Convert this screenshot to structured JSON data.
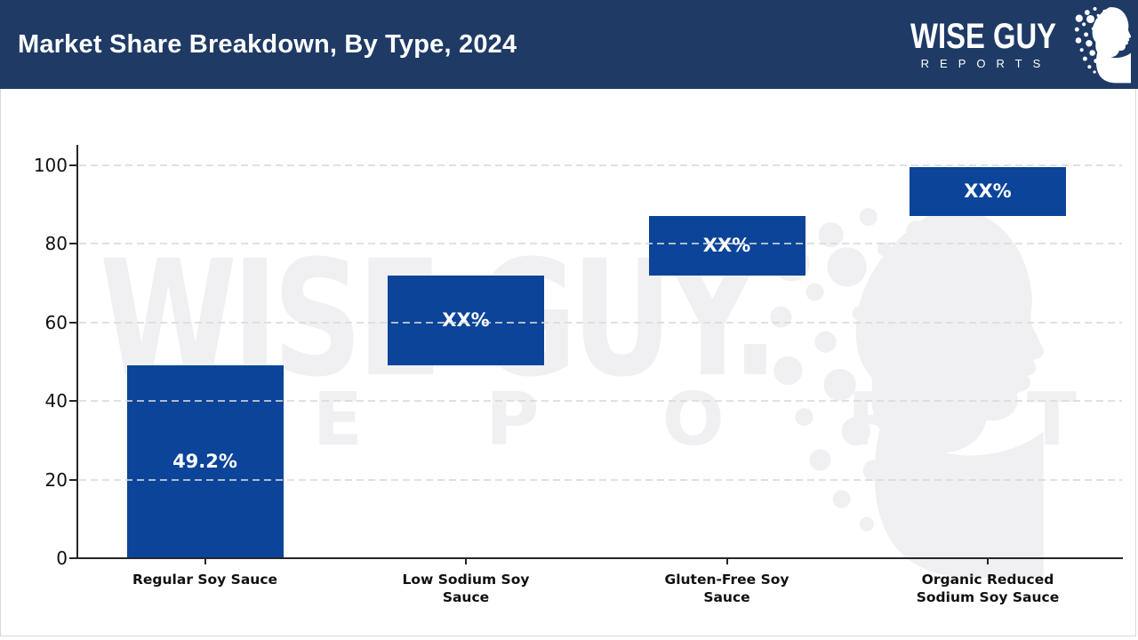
{
  "header": {
    "title": "Market Share Breakdown, By Type, 2024",
    "brand_line1": "WISE GUY",
    "brand_line2": "REPORTS",
    "bg_color": "#1e3a65"
  },
  "watermark": {
    "line1": "WISE GUY.",
    "line2": "R E P O R T S"
  },
  "chart_data": {
    "type": "bar",
    "subtype": "waterfall",
    "title": "Market Share Breakdown, By Type, 2024",
    "xlabel": "",
    "ylabel": "",
    "ylim": [
      0,
      105
    ],
    "yticks": [
      0,
      20,
      40,
      60,
      80,
      100
    ],
    "grid": "horizontal-dashed",
    "legend": "none",
    "bar_color": "#0b4499",
    "bar_label_color": "#ffffff",
    "categories": [
      {
        "name": "Regular Soy Sauce",
        "lines": [
          "Regular Soy Sauce"
        ]
      },
      {
        "name": "Low Sodium Soy Sauce",
        "lines": [
          "Low Sodium Soy",
          "Sauce"
        ]
      },
      {
        "name": "Gluten-Free Soy Sauce",
        "lines": [
          "Gluten-Free Soy",
          "Sauce"
        ]
      },
      {
        "name": "Organic Reduced Sodium Soy Sauce",
        "lines": [
          "Organic Reduced",
          "Sodium Soy Sauce"
        ]
      }
    ],
    "segments": [
      {
        "category": "Regular Soy Sauce",
        "start": 0,
        "end": 49.2,
        "label": "49.2%"
      },
      {
        "category": "Low Sodium Soy Sauce",
        "start": 49.2,
        "end": 72.0,
        "label": "XX%"
      },
      {
        "category": "Gluten-Free Soy Sauce",
        "start": 72.0,
        "end": 87.2,
        "label": "XX%"
      },
      {
        "category": "Organic Reduced Sodium Soy Sauce",
        "start": 87.2,
        "end": 99.6,
        "label": "XX%"
      }
    ]
  }
}
